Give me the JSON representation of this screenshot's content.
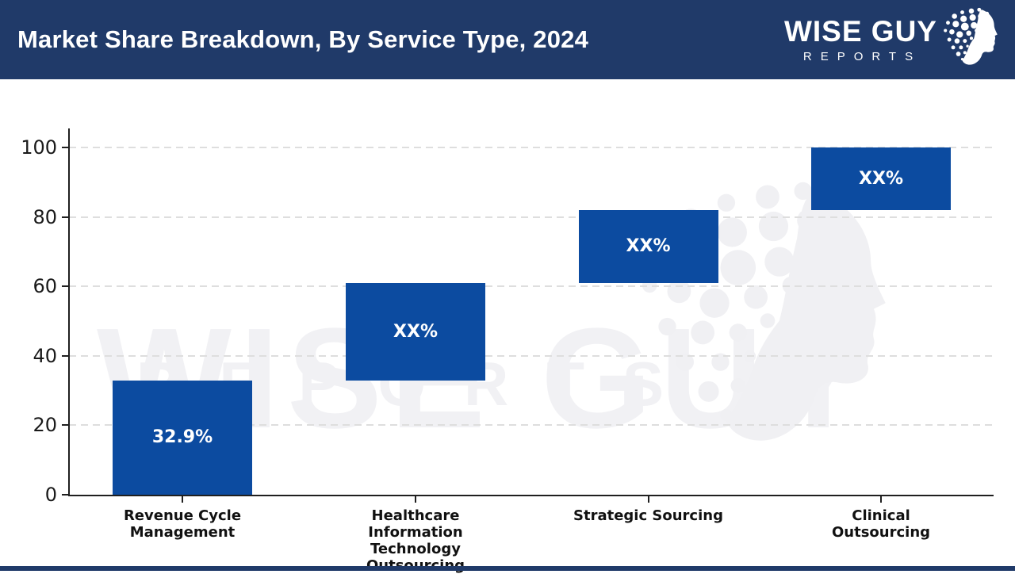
{
  "header": {
    "title": "Market Share Breakdown, By Service Type, 2024",
    "logo": {
      "name": "WISE GUY",
      "tagline": "REPORTS"
    }
  },
  "watermark": {
    "line1": "WISE GUY",
    "line2": "REPORTS"
  },
  "chart_data": {
    "type": "bar",
    "subtype": "waterfall",
    "title": "Market Share Breakdown, By Service Type, 2024",
    "categories": [
      "Revenue Cycle Management",
      "Healthcare Information Technology Outsourcing",
      "Strategic Sourcing",
      "Clinical Outsourcing"
    ],
    "categories_display": [
      "Revenue Cycle\nManagement",
      "Healthcare\nInformation\nTechnology\nOutsourcing",
      "Strategic Sourcing",
      "Clinical\nOutsourcing"
    ],
    "segments": [
      {
        "category": "Revenue Cycle Management",
        "start": 0,
        "end": 32.9,
        "label": "32.9%"
      },
      {
        "category": "Healthcare Information Technology Outsourcing",
        "start": 32.9,
        "end": 61,
        "label": "XX%"
      },
      {
        "category": "Strategic Sourcing",
        "start": 61,
        "end": 82,
        "label": "XX%"
      },
      {
        "category": "Clinical Outsourcing",
        "start": 82,
        "end": 100,
        "label": "XX%"
      }
    ],
    "ylim": [
      0,
      100
    ],
    "yticks": [
      0,
      20,
      40,
      60,
      80,
      100
    ],
    "grid": "horizontal-dashed",
    "legend": "none",
    "bar_color": "#0c4ba0",
    "bar_label_color": "#ffffff"
  },
  "colors": {
    "header_bg": "#203a69",
    "footer_bg": "#203a69",
    "bar": "#0c4ba0",
    "grid": "#dedede",
    "axis": "#1f1f1f",
    "tick_text": "#1a1a1a",
    "watermark": "#f1f1f4",
    "title_text": "#ffffff"
  }
}
